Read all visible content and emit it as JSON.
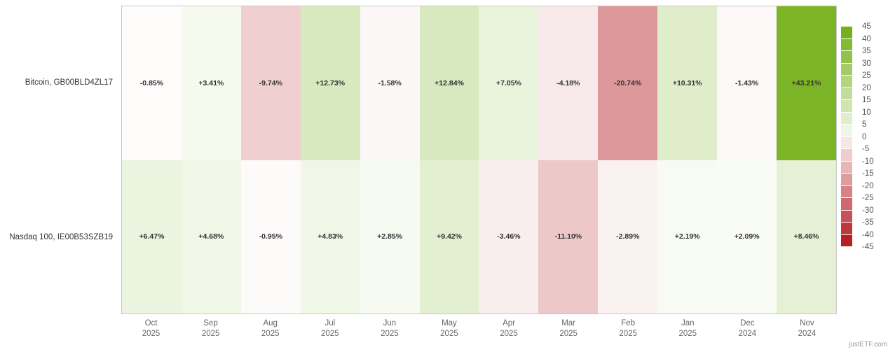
{
  "ui": {
    "watermark": "justETF.com"
  },
  "chart_data": {
    "type": "heatmap",
    "title": "",
    "xlabel": "",
    "ylabel": "",
    "categories": [
      "Oct 2025",
      "Sep 2025",
      "Aug 2025",
      "Jul 2025",
      "Jun 2025",
      "May 2025",
      "Apr 2025",
      "Mar 2025",
      "Feb 2025",
      "Jan 2025",
      "Dec 2024",
      "Nov 2024"
    ],
    "series": [
      {
        "name": "Bitcoin, GB00BLD4ZL17",
        "values": [
          -0.85,
          3.41,
          -9.74,
          12.73,
          -1.58,
          12.84,
          7.05,
          -4.18,
          -20.74,
          10.31,
          -1.43,
          43.21
        ]
      },
      {
        "name": "Nasdaq 100, IE00B53SZB19",
        "values": [
          6.47,
          4.68,
          -0.95,
          4.83,
          2.85,
          9.42,
          -3.46,
          -11.1,
          -2.89,
          2.19,
          2.09,
          8.46
        ]
      }
    ],
    "value_unit": "%",
    "value_format": "signed_two_decimals_percent",
    "grid": false,
    "legend_position": "right",
    "color_axis": {
      "min": -45,
      "max": 45,
      "step": 5,
      "positive_color": "#76b11d",
      "negative_color": "#b62025",
      "neutral_color": "#ffffff",
      "tick_labels": [
        45,
        40,
        35,
        30,
        25,
        20,
        15,
        10,
        5,
        0,
        -5,
        -10,
        -15,
        -20,
        -25,
        -30,
        -35,
        -40,
        -45
      ]
    }
  }
}
